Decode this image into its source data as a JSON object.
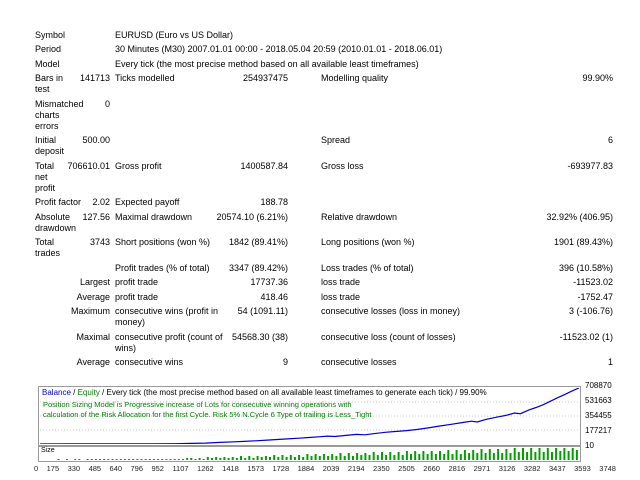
{
  "stats": {
    "rows": [
      {
        "label": "Symbol",
        "mid_text": "EURUSD (Euro vs US Dollar)"
      },
      {
        "label": "Period",
        "mid_text": "30 Minutes (M30) 2007.01.01 00:00 - 2018.05.04 20:59 (2010.01.01 - 2018.06.01)"
      },
      {
        "label": "Model",
        "mid_text": "Every tick (the most precise method based on all available least timeframes)"
      },
      {
        "label": "Bars in test",
        "value": "141713",
        "mid_label": "Ticks modelled",
        "mid_value": "254937475",
        "right_label": "Modelling quality",
        "right_value": "99.90%"
      },
      {
        "label": "Mismatched\ncharts\nerrors",
        "value": "0"
      },
      {
        "label": "Initial\ndeposit",
        "value": "500.00",
        "right_label": "Spread",
        "right_value": "6"
      },
      {
        "label": "Total net\nprofit",
        "value": "706610.01",
        "mid_label": "Gross profit",
        "mid_value": "1400587.84",
        "right_label": "Gross loss",
        "right_value": "-693977.83"
      },
      {
        "label": "Profit factor",
        "value": "2.02",
        "mid_label": "Expected payoff",
        "mid_value": "188.78"
      },
      {
        "label": "Absolute\ndrawdown",
        "value": "127.56",
        "mid_label": "Maximal drawdown",
        "mid_value": "20574.10 (6.21%)",
        "right_label": "Relative drawdown",
        "right_value": "32.92% (406.95)"
      },
      {
        "label": "Total\ntrades",
        "value": "3743",
        "mid_label": "Short positions (won %)",
        "mid_value": "1842 (89.41%)",
        "right_label": "Long positions (won %)",
        "right_value": "1901 (89.43%)"
      },
      {
        "label": "",
        "mid_label": "Profit trades (% of total)",
        "mid_value": "3347 (89.42%)",
        "right_label": "Loss trades (% of total)",
        "right_value": "396 (10.58%)"
      },
      {
        "label": "",
        "sub": "Largest",
        "mid_label": "profit trade",
        "mid_value": "17737.36",
        "right_label": "loss trade",
        "right_value": "-11523.02"
      },
      {
        "label": "",
        "sub": "Average",
        "mid_label": "profit trade",
        "mid_value": "418.46",
        "right_label": "loss trade",
        "right_value": "-1752.47"
      },
      {
        "label": "",
        "sub": "Maximum",
        "mid_label": "consecutive wins (profit in money)",
        "mid_value": "54 (1091.11)",
        "right_label": "consecutive losses (loss in money)",
        "right_value": "3 (-106.76)"
      },
      {
        "label": "",
        "sub": "Maximal",
        "mid_label": "consecutive profit (count of wins)",
        "mid_value": "54568.30 (38)",
        "right_label": "consecutive loss (count of losses)",
        "right_value": "-11523.02 (1)"
      },
      {
        "label": "",
        "sub": "Average",
        "mid_label": "consecutive wins",
        "mid_value": "9",
        "right_label": "consecutive losses",
        "right_value": "1"
      }
    ]
  },
  "chart": {
    "header": {
      "balance": "Balance",
      "sep": " / ",
      "equity": "Equity",
      "rest": " / Every tick (the most precise method based on all available least timeframes to generate each tick) / 99.90%"
    },
    "annotation_line1": "Position Sizing Model is  Progressive increase of Lots for consecutive winning operations with",
    "annotation_line2": "calculation of the Risk Allocation for the first Cycle.  Risk 5%  N.Cycle 6  Type of trailing is Less_Tight",
    "size_label": "Size",
    "colors": {
      "balance": "#0000cc",
      "equity": "#00a000",
      "annotation": "#008000",
      "bars": "#00a000",
      "grid": "#cccccc",
      "border": "#9a9a9a"
    }
  },
  "chart_data": {
    "type": "line",
    "title": "Balance / Equity",
    "legend": [
      "Balance",
      "Equity"
    ],
    "xlim": [
      0,
      3748
    ],
    "ylim": [
      10,
      708870
    ],
    "x_ticks": [
      0,
      175,
      330,
      485,
      640,
      796,
      952,
      1107,
      1262,
      1418,
      1573,
      1728,
      1884,
      2039,
      2194,
      2350,
      2505,
      2660,
      2816,
      2971,
      3126,
      3282,
      3437,
      3593,
      3748
    ],
    "y_ticks": [
      708870,
      531663,
      354455,
      177217,
      10
    ],
    "series": [
      {
        "name": "Balance",
        "color": "#0000cc",
        "points": [
          [
            0,
            500
          ],
          [
            200,
            700
          ],
          [
            400,
            1100
          ],
          [
            600,
            1700
          ],
          [
            800,
            2600
          ],
          [
            950,
            4200
          ],
          [
            1050,
            7000
          ],
          [
            1150,
            12000
          ],
          [
            1250,
            20000
          ],
          [
            1350,
            28000
          ],
          [
            1420,
            33000
          ],
          [
            1500,
            41000
          ],
          [
            1580,
            50000
          ],
          [
            1650,
            57000
          ],
          [
            1720,
            64000
          ],
          [
            1800,
            74000
          ],
          [
            1870,
            82000
          ],
          [
            1950,
            92000
          ],
          [
            2000,
            100000
          ],
          [
            2050,
            95000
          ],
          [
            2120,
            108000
          ],
          [
            2200,
            122000
          ],
          [
            2260,
            116000
          ],
          [
            2320,
            131000
          ],
          [
            2400,
            148000
          ],
          [
            2470,
            158000
          ],
          [
            2550,
            170000
          ],
          [
            2620,
            184000
          ],
          [
            2700,
            204000
          ],
          [
            2780,
            228000
          ],
          [
            2860,
            250000
          ],
          [
            2940,
            272000
          ],
          [
            3000,
            288000
          ],
          [
            3040,
            278000
          ],
          [
            3100,
            312000
          ],
          [
            3170,
            338000
          ],
          [
            3240,
            362000
          ],
          [
            3300,
            392000
          ],
          [
            3340,
            383000
          ],
          [
            3400,
            432000
          ],
          [
            3450,
            462000
          ],
          [
            3500,
            498000
          ],
          [
            3550,
            542000
          ],
          [
            3600,
            586000
          ],
          [
            3650,
            628000
          ],
          [
            3700,
            672000
          ],
          [
            3730,
            695000
          ],
          [
            3748,
            708870
          ]
        ]
      }
    ],
    "size_histogram": {
      "name": "Size",
      "color": "#00a000",
      "normalized_heights": [
        0.0,
        0.04,
        0.0,
        0.04,
        0.05,
        0.0,
        0.05,
        0.04,
        0.05,
        0.05,
        0.04,
        0.05,
        0.05,
        0.06,
        0.05,
        0.06,
        0.05,
        0.06,
        0.06,
        0.05,
        0.06,
        0.06,
        0.07,
        0.06,
        0.07,
        0.07,
        0.06,
        0.07,
        0.08,
        0.07,
        0.08,
        0.09,
        0.08,
        0.1,
        0.11,
        0.13,
        0.16,
        0.09,
        0.2,
        0.12,
        0.22,
        0.14,
        0.25,
        0.15,
        0.27,
        0.16,
        0.29,
        0.18,
        0.31,
        0.19,
        0.33,
        0.2,
        0.35,
        0.22,
        0.37,
        0.23,
        0.39,
        0.24,
        0.41,
        0.26,
        0.43,
        0.27,
        0.45,
        0.28,
        0.47,
        0.3,
        0.49,
        0.31,
        0.51,
        0.32,
        0.53,
        0.34,
        0.55,
        0.35,
        0.57,
        0.36,
        0.59,
        0.38,
        0.61,
        0.39,
        0.63,
        0.4,
        0.65,
        0.42,
        0.67,
        0.43,
        0.69,
        0.44,
        0.71,
        0.46,
        0.73,
        0.47,
        0.75,
        0.48,
        0.77,
        0.5,
        0.79,
        0.51,
        0.81,
        0.52,
        0.83,
        0.54,
        0.85,
        0.55,
        0.87,
        0.56,
        0.89,
        0.58,
        0.91,
        0.59,
        0.93,
        0.6,
        0.95,
        0.62,
        0.97,
        0.63,
        0.99,
        0.65,
        1.0,
        0.66,
        0.98,
        0.68,
        1.0,
        0.7,
        0.96,
        0.72,
        1.0,
        0.75,
        1.0,
        0.8
      ]
    }
  }
}
